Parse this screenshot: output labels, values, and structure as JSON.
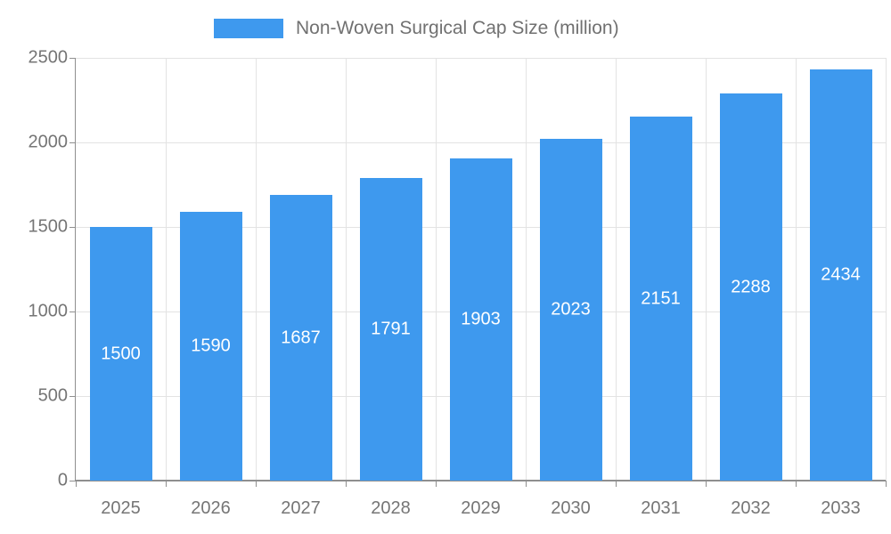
{
  "chart_data": {
    "type": "bar",
    "title": "Non-Woven Surgical Cap Size (million)",
    "categories": [
      "2025",
      "2026",
      "2027",
      "2028",
      "2029",
      "2030",
      "2031",
      "2032",
      "2033"
    ],
    "values": [
      1500,
      1590,
      1687,
      1791,
      1903,
      2023,
      2151,
      2288,
      2434
    ],
    "xlabel": "",
    "ylabel": "",
    "ylim": [
      0,
      2500
    ],
    "yticks": [
      0,
      500,
      1000,
      1500,
      2000,
      2500
    ],
    "grid": true,
    "legend_position": "top-center",
    "value_labels": "inside-center"
  },
  "legend": {
    "series_label": "Non-Woven Surgical Cap Size (million)"
  },
  "colors": {
    "bar": "#3E99EE",
    "value_label": "#FFFFFF",
    "axis_text": "#757575",
    "axis_line": "#8F8F8F",
    "grid_line": "#E3E3E3",
    "legend_text": "#717171"
  }
}
